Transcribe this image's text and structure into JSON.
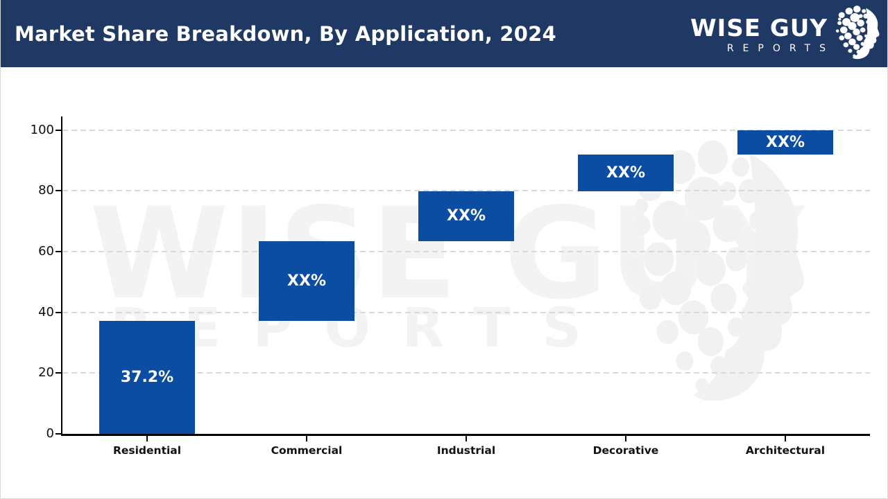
{
  "header": {
    "title": "Market Share Breakdown, By Application, 2024",
    "logo": {
      "line1": "WISE GUY",
      "line2": "REPORTS"
    }
  },
  "watermark": {
    "line1": "WISE GUY",
    "line2": "REPORTS"
  },
  "chart_data": {
    "type": "bar",
    "subtype": "waterfall",
    "title": "Market Share Breakdown, By Application, 2024",
    "categories": [
      "Residential",
      "Commercial",
      "Industrial",
      "Decorative",
      "Architectural"
    ],
    "segments": [
      {
        "category": "Residential",
        "start": 0,
        "end": 37.2,
        "value": 37.2,
        "label": "37.2%"
      },
      {
        "category": "Commercial",
        "start": 37.2,
        "end": 63.5,
        "value": 26.3,
        "label": "XX%"
      },
      {
        "category": "Industrial",
        "start": 63.5,
        "end": 79.8,
        "value": 16.3,
        "label": "XX%"
      },
      {
        "category": "Decorative",
        "start": 79.8,
        "end": 92.0,
        "value": 12.2,
        "label": "XX%"
      },
      {
        "category": "Architectural",
        "start": 92.0,
        "end": 100.0,
        "value": 8.0,
        "label": "XX%"
      }
    ],
    "ylim": [
      0,
      100
    ],
    "yticks": [
      0,
      20,
      40,
      60,
      80,
      100
    ],
    "xlabel": "",
    "ylabel": "",
    "legend": "none",
    "grid": {
      "horizontal": true,
      "style": "dashed"
    },
    "colors": {
      "bar": "#0b4da2",
      "bar_label": "#ffffff",
      "header_bg": "#1f3864",
      "header_text": "#ffffff",
      "grid_line": "#d9d9d9",
      "axis": "#000000",
      "watermark": "#f3f3f3"
    }
  }
}
